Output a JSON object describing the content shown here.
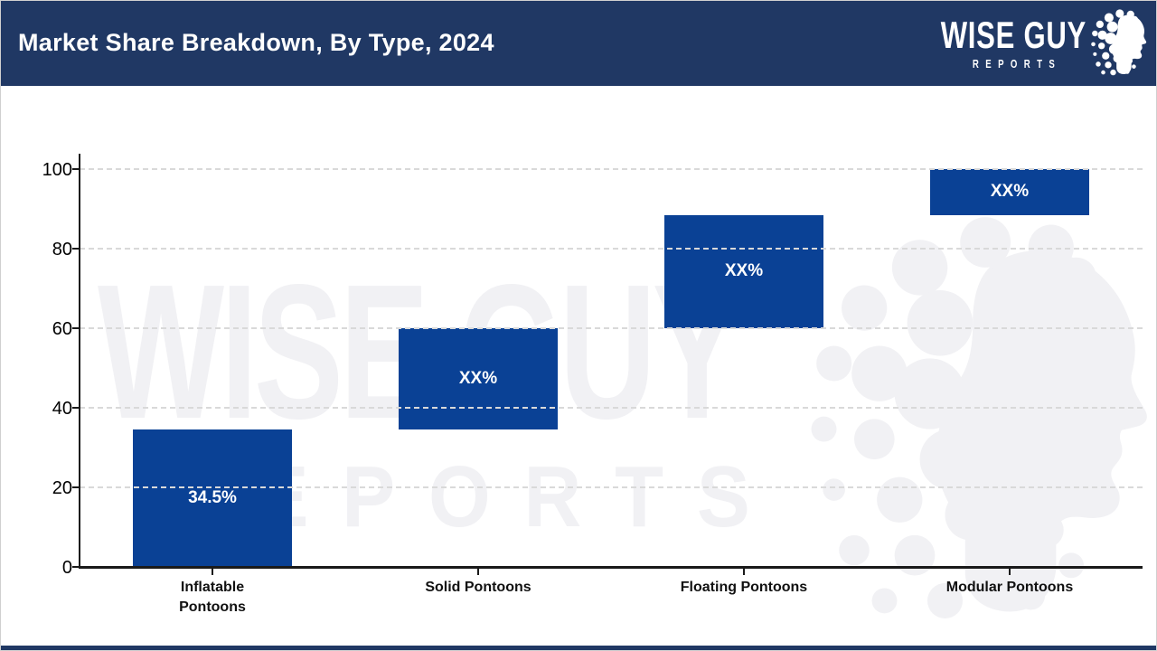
{
  "header": {
    "title": "Market Share Breakdown, By Type, 2024",
    "logo": {
      "line1": "WISE GUY",
      "line2": "REPORTS"
    }
  },
  "watermark": {
    "line1": "WISE GUY",
    "line2": "REPORTS"
  },
  "chart_data": {
    "type": "bar",
    "subtype": "waterfall",
    "title": "Market Share Breakdown, By Type, 2024",
    "categories": [
      "Inflatable\nPontoons",
      "Solid Pontoons",
      "Floating Pontoons",
      "Modular Pontoons"
    ],
    "series": [
      {
        "name": "Market share by type",
        "segments": [
          {
            "category": "Inflatable Pontoons",
            "start": 0,
            "end": 34.5,
            "label": "34.5%"
          },
          {
            "category": "Solid Pontoons",
            "start": 34.5,
            "end": 60,
            "label": "XX%"
          },
          {
            "category": "Floating Pontoons",
            "start": 60,
            "end": 88.5,
            "label": "XX%"
          },
          {
            "category": "Modular Pontoons",
            "start": 88.5,
            "end": 100,
            "label": "XX%"
          }
        ]
      }
    ],
    "xlabel": "",
    "ylabel": "",
    "ylim": [
      0,
      105
    ],
    "yticks": [
      0,
      20,
      40,
      60,
      80,
      100
    ],
    "grid": "dashed-horizontal",
    "legend": "none",
    "bar_color": "#0a4195",
    "bar_label_color": "#ffffff"
  },
  "colors": {
    "header_bg": "#203864",
    "footer_bg": "#203864",
    "bar": "#0a4195",
    "watermark": "#f1f1f4",
    "grid": "#d9d9d9",
    "axis": "#1a1a1a",
    "page_border": "#d0d0d0"
  }
}
